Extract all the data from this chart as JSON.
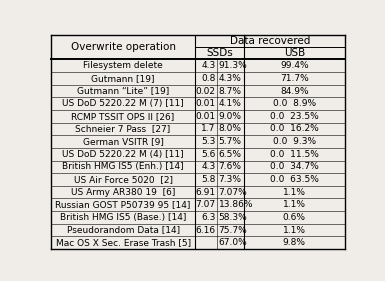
{
  "rows": [
    [
      "Filesystem delete",
      "4.3",
      "91.3%",
      "99.4%"
    ],
    [
      "Gutmann [19]",
      "0.8",
      "4.3%",
      "71.7%"
    ],
    [
      "Gutmann “Lite” [19]",
      "0.02",
      "8.7%",
      "84.9%"
    ],
    [
      "US DoD 5220.22 M (7) [11]",
      "0.01",
      "4.1%",
      "0.0  8.9%"
    ],
    [
      "RCMP TSSIT OPS II [26]",
      "0.01",
      "9.0%",
      "0.0  23.5%"
    ],
    [
      "Schneier 7 Pass  [27]",
      "1.7",
      "8.0%",
      "0.0  16.2%"
    ],
    [
      "German VSITR [9]",
      "5.3",
      "5.7%",
      "0.0  9.3%"
    ],
    [
      "US DoD 5220.22 M (4) [11]",
      "5.6",
      "6.5%",
      "0.0  11.5%"
    ],
    [
      "British HMG IS5 (Enh.) [14]",
      "4.3",
      "7.6%",
      "0.0  34.7%"
    ],
    [
      "US Air Force 5020  [2]",
      "5.8",
      "7.3%",
      "0.0  63.5%"
    ],
    [
      "US Army AR380 19  [6]",
      "6.91",
      "7.07%",
      "1.1%"
    ],
    [
      "Russian GOST P50739 95 [14]",
      "7.07",
      "13.86%",
      "1.1%"
    ],
    [
      "British HMG IS5 (Base.) [14]",
      "6.3",
      "58.3%",
      "0.6%"
    ],
    [
      "Pseudorandom Data [14]",
      "6.16",
      "75.7%",
      "1.1%"
    ],
    [
      "Mac OS X Sec. Erase Trash [5]",
      "",
      "67.0%",
      "9.8%"
    ]
  ],
  "bg_color": "#f0ede8",
  "font_size": 6.5,
  "header_font_size": 7.5,
  "col_split": 0.49,
  "ssd_split": 0.655,
  "usb_split": 0.845
}
